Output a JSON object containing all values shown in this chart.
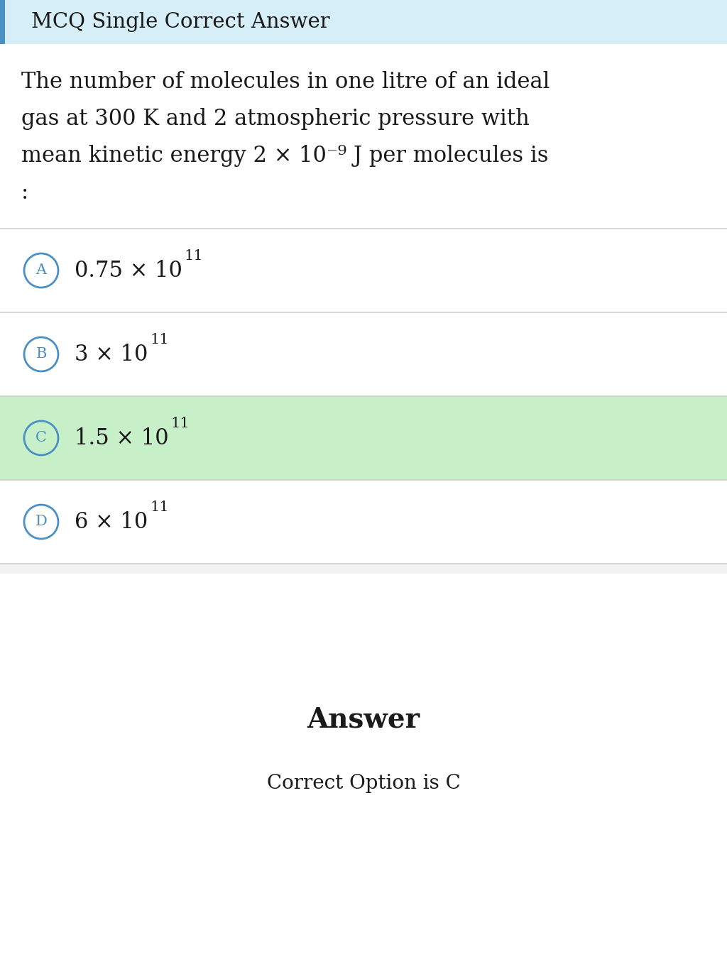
{
  "header_text": "MCQ Single Correct Answer",
  "header_bg": "#d6eef8",
  "header_border_color": "#4a90c4",
  "question_lines": [
    "The number of molecules in one litre of an ideal",
    "gas at 300 K and 2 atmospheric pressure with",
    "mean kinetic energy 2 × 10⁻⁹ J per molecules is",
    ":"
  ],
  "options": [
    {
      "label": "A",
      "base": "0.75 × 10",
      "sup": "11",
      "bg": "#ffffff",
      "highlight": false
    },
    {
      "label": "B",
      "base": "3 × 10",
      "sup": "11",
      "bg": "#ffffff",
      "highlight": false
    },
    {
      "label": "C",
      "base": "1.5 × 10",
      "sup": "11",
      "bg": "#c8f0c8",
      "highlight": true
    },
    {
      "label": "D",
      "base": "6 × 10",
      "sup": "11",
      "bg": "#ffffff",
      "highlight": false
    }
  ],
  "answer_label": "Answer",
  "correct_option_text": "Correct Option is C",
  "bg_color": "#ffffff",
  "separator_color": "#d0d0d0",
  "answer_bg": "#f2f2f2",
  "circle_color": "#4a90c4",
  "text_color": "#1a1a1a",
  "header_font_size": 21,
  "question_font_size": 22,
  "option_font_size": 22,
  "option_sup_font_size": 15,
  "answer_font_size": 28,
  "correct_font_size": 20,
  "label_font_size": 15,
  "figwidth": 10.24,
  "figheight": 13.48,
  "dpi": 100
}
